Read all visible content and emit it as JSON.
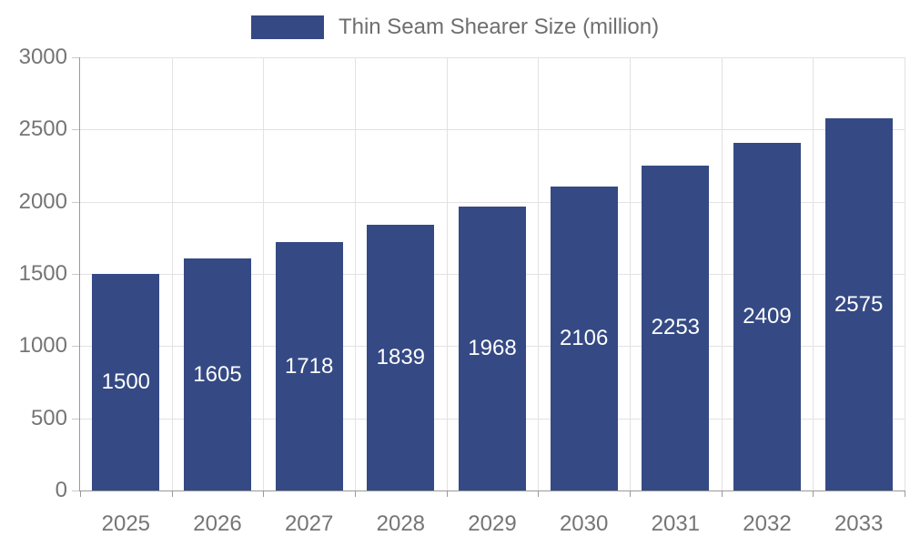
{
  "chart_data": {
    "type": "bar",
    "title": "",
    "categories": [
      "2025",
      "2026",
      "2027",
      "2028",
      "2029",
      "2030",
      "2031",
      "2032",
      "2033"
    ],
    "series": [
      {
        "name": "Thin Seam Shearer Size (million)",
        "values": [
          1500,
          1605,
          1718,
          1839,
          1968,
          2106,
          2253,
          2409,
          2575
        ]
      }
    ],
    "value_labels_shown": true,
    "xlabel": "",
    "ylabel": "",
    "ylim": [
      0,
      3000
    ],
    "yticks": [
      0,
      500,
      1000,
      1500,
      2000,
      2500,
      3000
    ],
    "grid": true,
    "legend_position": "top-center",
    "colors": {
      "bar": "#354A84",
      "value_label": "#FFFFFF",
      "axis_text": "#757575",
      "legend_text": "#6E6E6E",
      "grid_line": "#E2E2E2",
      "axis_line": "#999999",
      "tick_line": "#C9C9C9",
      "background": "#FFFFFF"
    }
  }
}
